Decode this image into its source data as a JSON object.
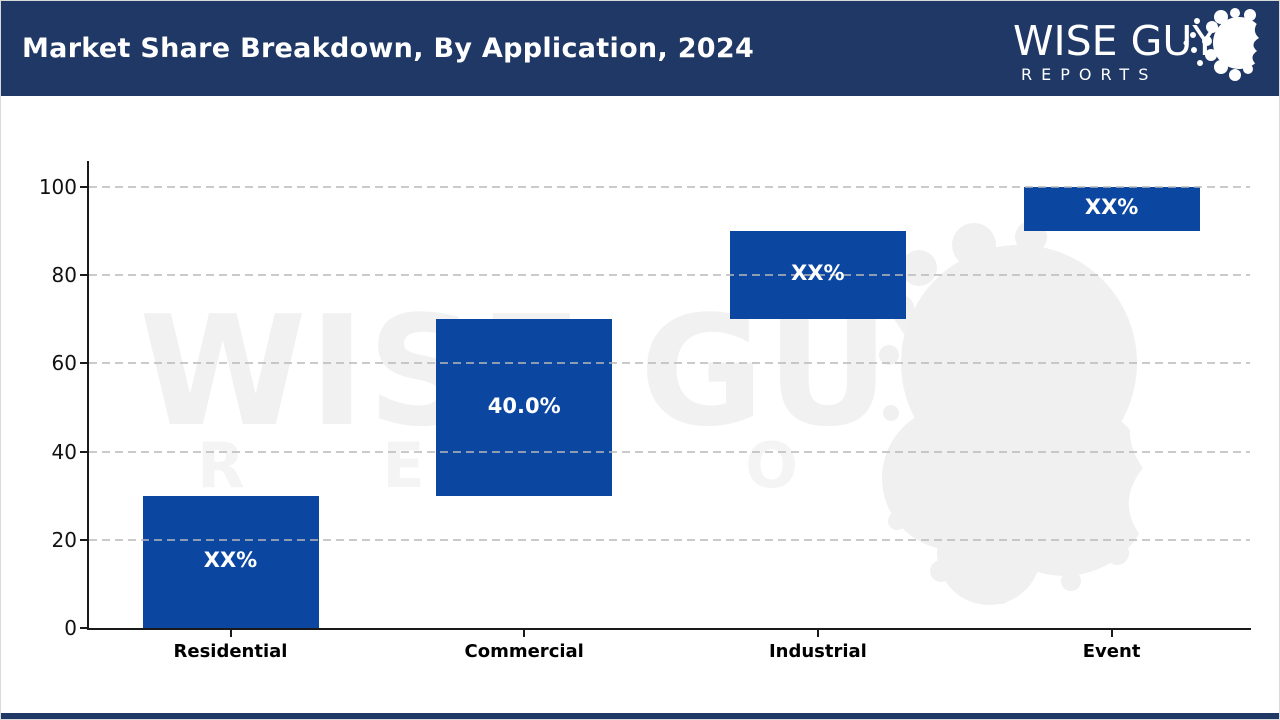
{
  "header": {
    "title": "Market Share Breakdown, By Application, 2024",
    "background_color": "#1f3865",
    "logo": {
      "brand_top": "WISE GUY",
      "brand_bottom": "R E P O R T S",
      "head_icon": "dotted-head-profile-icon"
    }
  },
  "watermark": {
    "line1": "WISE GUY",
    "line2": "R E P O R T S",
    "head_icon": "dotted-head-profile-watermark-icon"
  },
  "chart_data": {
    "type": "bar",
    "subtype": "floating-waterfall-segments",
    "title": "Market Share Breakdown, By Application, 2024",
    "categories": [
      "Residential",
      "Commercial",
      "Industrial",
      "Event"
    ],
    "segments": [
      {
        "category": "Residential",
        "start": 0,
        "end": 30
      },
      {
        "category": "Commercial",
        "start": 30,
        "end": 70
      },
      {
        "category": "Industrial",
        "start": 70,
        "end": 90
      },
      {
        "category": "Event",
        "start": 90,
        "end": 100
      }
    ],
    "bar_labels": [
      "XX%",
      "40.0%",
      "XX%",
      "XX%"
    ],
    "xlabel": "",
    "ylabel": "",
    "ylim": [
      0,
      100
    ],
    "yticks": [
      0,
      20,
      40,
      60,
      80,
      100
    ],
    "grid": "horizontal dashed, drawn above bars",
    "legend_position": "none",
    "bar_color": "#0b47a1",
    "gridline_color": "#b9b9b9",
    "axis_color": "#1a1a1a"
  }
}
